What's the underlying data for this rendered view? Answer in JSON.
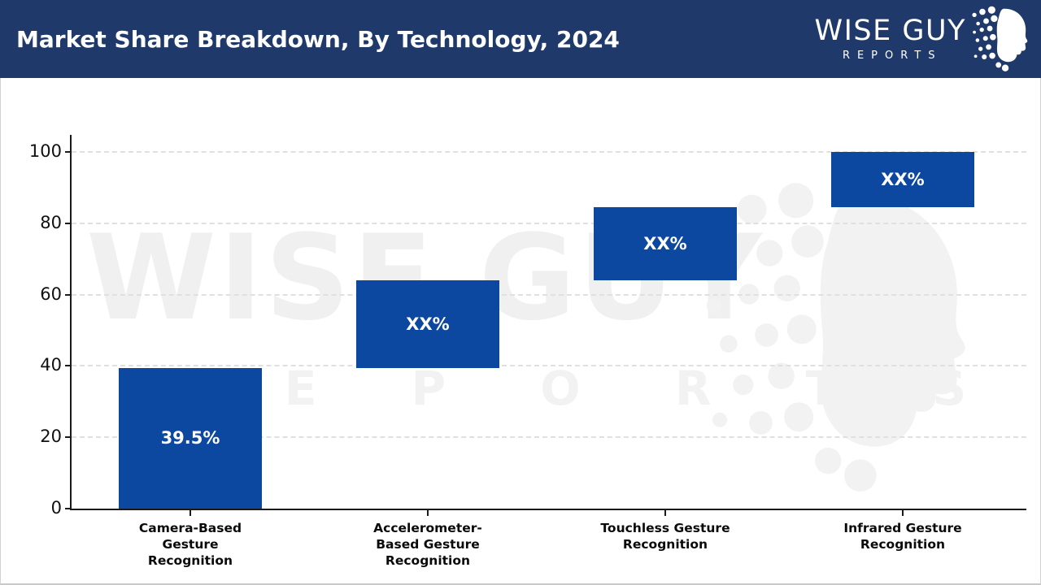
{
  "header": {
    "title": "Market Share Breakdown, By Technology, 2024",
    "background_color": "#1f3a6a",
    "logo": {
      "wordmark": "WISE GUY",
      "subtitle": "REPORTS"
    }
  },
  "watermark": {
    "line1": "WISE GUY",
    "line2": "R E P O R T S"
  },
  "chart_data": {
    "type": "bar",
    "subtype": "waterfall",
    "title": "Market Share Breakdown, By Technology, 2024",
    "categories": [
      "Camera-Based Gesture Recognition",
      "Accelerometer-Based Gesture Recognition",
      "Touchless Gesture Recognition",
      "Infrared Gesture Recognition"
    ],
    "category_lines": [
      [
        "Camera-Based",
        "Gesture",
        "Recognition"
      ],
      [
        "Accelerometer-",
        "Based Gesture",
        "Recognition"
      ],
      [
        "Touchless Gesture",
        "Recognition"
      ],
      [
        "Infrared Gesture",
        "Recognition"
      ]
    ],
    "bars": [
      {
        "category": "Camera-Based Gesture Recognition",
        "label": "39.5%",
        "start": 0,
        "end": 39.5
      },
      {
        "category": "Accelerometer-Based Gesture Recognition",
        "label": "XX%",
        "start": 39.5,
        "end": 64
      },
      {
        "category": "Touchless Gesture Recognition",
        "label": "XX%",
        "start": 64,
        "end": 84.5
      },
      {
        "category": "Infrared Gesture Recognition",
        "label": "XX%",
        "start": 84.5,
        "end": 100
      }
    ],
    "ylim": [
      0,
      100
    ],
    "yticks": [
      0,
      20,
      40,
      60,
      80,
      100
    ],
    "grid": "horizontal-dashed",
    "legend": "none",
    "bar_color": "#0c47a0",
    "axis_color": "#1a1a1a",
    "gridline_color": "#e0e0e0",
    "value_label_color": "#ffffff"
  }
}
